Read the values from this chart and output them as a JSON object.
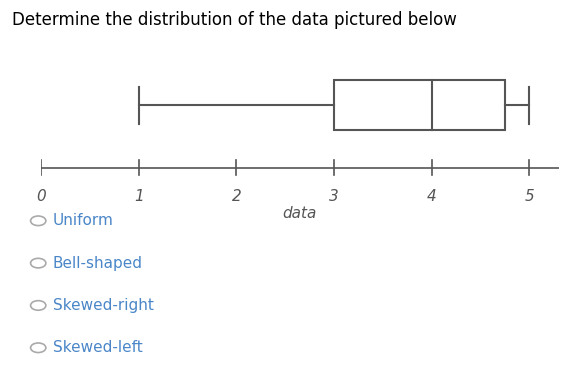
{
  "title": "Determine the distribution of the data pictured below",
  "title_fontsize": 12,
  "xlabel": "data",
  "xlim": [
    0,
    5.3
  ],
  "xticks": [
    0,
    1,
    2,
    3,
    4,
    5
  ],
  "whisker_low": 1.0,
  "q1": 3.0,
  "median": 4.0,
  "q3": 4.75,
  "whisker_high": 5.0,
  "options": [
    "Uniform",
    "Bell-shaped",
    "Skewed-right",
    "Skewed-left"
  ],
  "background_color": "#ffffff",
  "line_color": "#555555",
  "text_color": "#4a86c8",
  "axis_text_color": "#555555"
}
